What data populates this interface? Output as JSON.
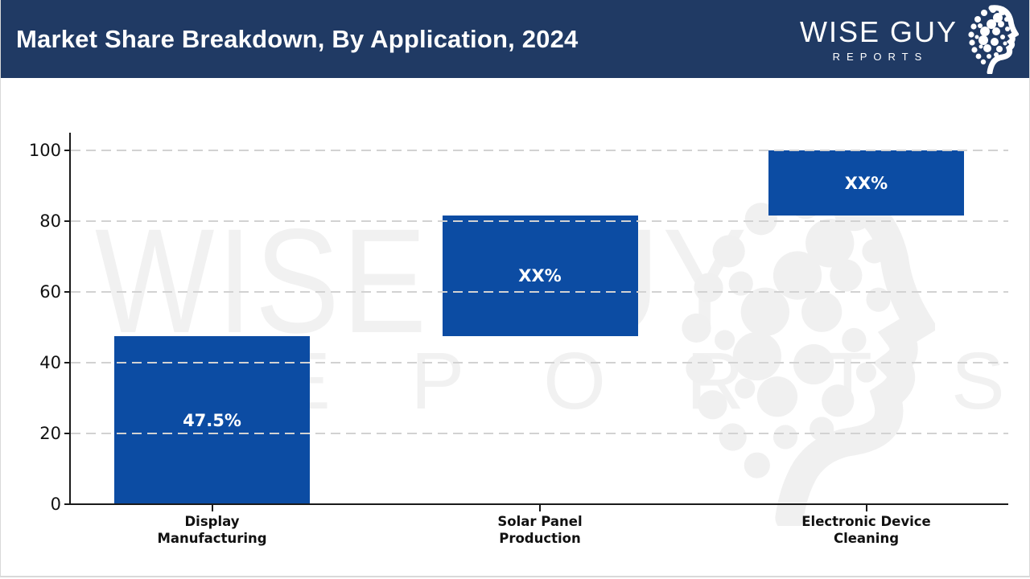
{
  "header": {
    "title": "Market Share Breakdown, By Application, 2024",
    "logo": {
      "line1": "WISE GUY",
      "line2": "REPORTS"
    }
  },
  "watermark": {
    "line1": "WISE GUY",
    "line2": "R E P O R T S"
  },
  "chart_data": {
    "type": "bar",
    "subtype": "waterfall",
    "title": "Market Share Breakdown, By Application, 2024",
    "categories": [
      "Display Manufacturing",
      "Solar Panel Production",
      "Electronic Device Cleaning"
    ],
    "category_label_lines": [
      [
        "Display",
        "Manufacturing"
      ],
      [
        "Solar Panel",
        "Production"
      ],
      [
        "Electronic Device",
        "Cleaning"
      ]
    ],
    "segments": [
      {
        "category": "Display Manufacturing",
        "start": 0,
        "end": 47.5,
        "label": "47.5%"
      },
      {
        "category": "Solar Panel Production",
        "start": 47.5,
        "end": 81.5,
        "label": "XX%"
      },
      {
        "category": "Electronic Device Cleaning",
        "start": 81.5,
        "end": 100,
        "label": "XX%"
      }
    ],
    "xlabel": "",
    "ylabel": "",
    "ylim": [
      0,
      100
    ],
    "yticks": [
      0,
      20,
      40,
      60,
      80,
      100
    ],
    "grid": "horizontal dashed",
    "legend": "none",
    "colors": {
      "bar": "#0c4ca3",
      "bar_label": "#ffffff",
      "grid": "#d2d2d2",
      "axis": "#1a1a1a",
      "header_bg": "#203a64",
      "watermark": "#f1f1f1"
    }
  }
}
